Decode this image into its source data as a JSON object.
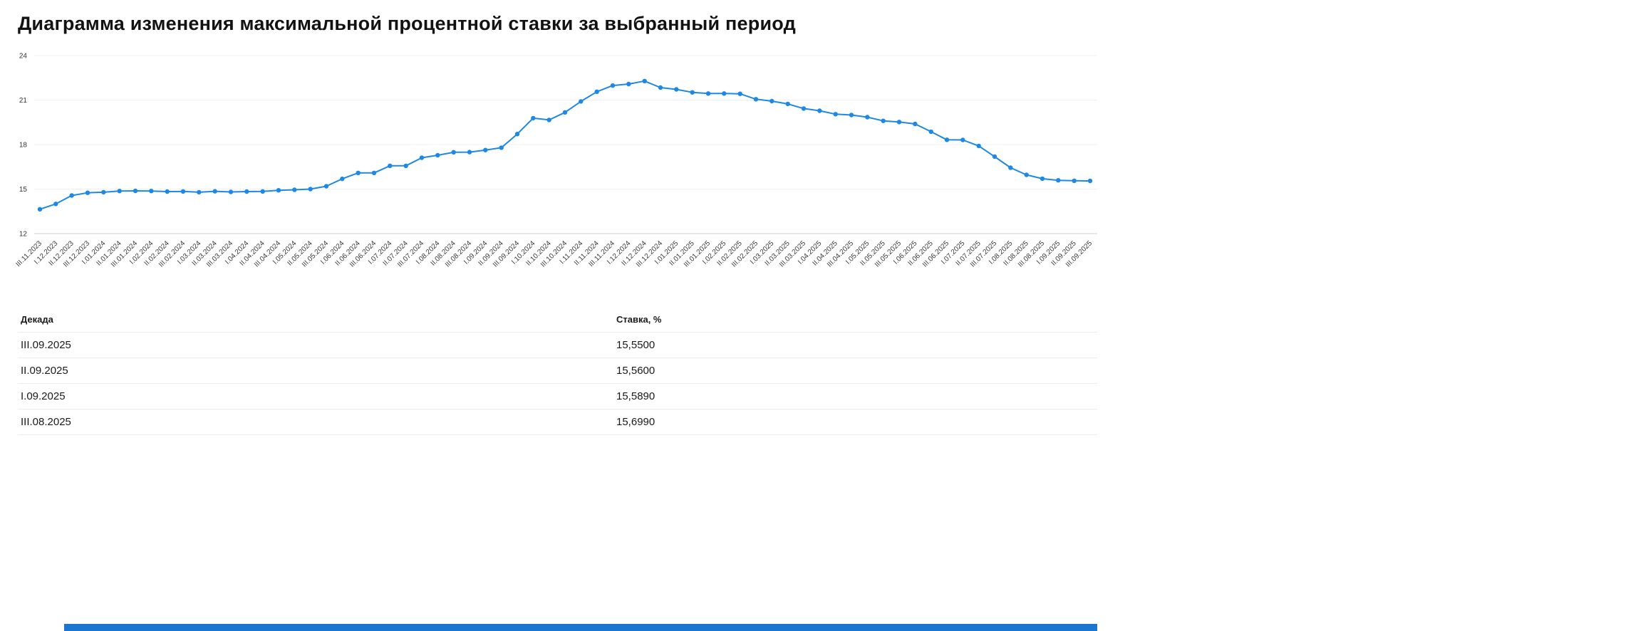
{
  "page": {
    "title": "Диаграмма изменения максимальной процентной ставки за выбранный период"
  },
  "chart_data": {
    "type": "line",
    "title": "Диаграмма изменения максимальной процентной ставки за выбранный период",
    "xlabel": "Декада",
    "ylabel": "Ставка, %",
    "ylim": [
      12,
      24
    ],
    "yticks": [
      12,
      15,
      18,
      21,
      24
    ],
    "grid": true,
    "legend": "none",
    "line_color": "#1e88e5",
    "marker": "circle",
    "categories": [
      "III.11.2023",
      "I.12.2023",
      "II.12.2023",
      "III.12.2023",
      "I.01.2024",
      "II.01.2024",
      "III.01.2024",
      "I.02.2024",
      "II.02.2024",
      "III.02.2024",
      "I.03.2024",
      "II.03.2024",
      "III.03.2024",
      "I.04.2024",
      "II.04.2024",
      "III.04.2024",
      "I.05.2024",
      "II.05.2024",
      "III.05.2024",
      "I.06.2024",
      "II.06.2024",
      "III.06.2024",
      "I.07.2024",
      "II.07.2024",
      "III.07.2024",
      "I.08.2024",
      "II.08.2024",
      "III.08.2024",
      "I.09.2024",
      "II.09.2024",
      "III.09.2024",
      "I.10.2024",
      "II.10.2024",
      "III.10.2024",
      "I.11.2024",
      "II.11.2024",
      "III.11.2024",
      "I.12.2024",
      "II.12.2024",
      "III.12.2024",
      "I.01.2025",
      "II.01.2025",
      "III.01.2025",
      "I.02.2025",
      "II.02.2025",
      "III.02.2025",
      "I.03.2025",
      "II.03.2025",
      "III.03.2025",
      "I.04.2025",
      "II.04.2025",
      "III.04.2025",
      "I.05.2025",
      "II.05.2025",
      "III.05.2025",
      "I.06.2025",
      "II.06.2025",
      "III.06.2025",
      "I.07.2025",
      "II.07.2025",
      "III.07.2025",
      "I.08.2025",
      "II.08.2025",
      "III.08.2025",
      "I.09.2025",
      "II.09.2025",
      "III.09.2025"
    ],
    "values": [
      13.64,
      14.0,
      14.57,
      14.75,
      14.79,
      14.87,
      14.88,
      14.87,
      14.83,
      14.84,
      14.79,
      14.85,
      14.81,
      14.83,
      14.84,
      14.92,
      14.95,
      15.0,
      15.19,
      15.69,
      16.09,
      16.09,
      16.57,
      16.57,
      17.11,
      17.28,
      17.48,
      17.49,
      17.63,
      17.79,
      18.71,
      19.78,
      19.66,
      20.17,
      20.91,
      21.56,
      21.98,
      22.08,
      22.28,
      21.84,
      21.72,
      21.52,
      21.44,
      21.44,
      21.42,
      21.06,
      20.93,
      20.74,
      20.43,
      20.28,
      20.05,
      19.99,
      19.85,
      19.6,
      19.52,
      19.39,
      18.87,
      18.32,
      18.31,
      17.91,
      17.19,
      16.44,
      15.96,
      15.699,
      15.589,
      15.56,
      15.55
    ]
  },
  "table": {
    "headers": [
      "Декада",
      "Ставка, %"
    ],
    "rows": [
      {
        "decade": "III.09.2025",
        "rate": "15,5500"
      },
      {
        "decade": "II.09.2025",
        "rate": "15,5600"
      },
      {
        "decade": "I.09.2025",
        "rate": "15,5890"
      },
      {
        "decade": "III.08.2025",
        "rate": "15,6990"
      }
    ]
  },
  "bottom_bar": {
    "color": "#1b76d1"
  }
}
